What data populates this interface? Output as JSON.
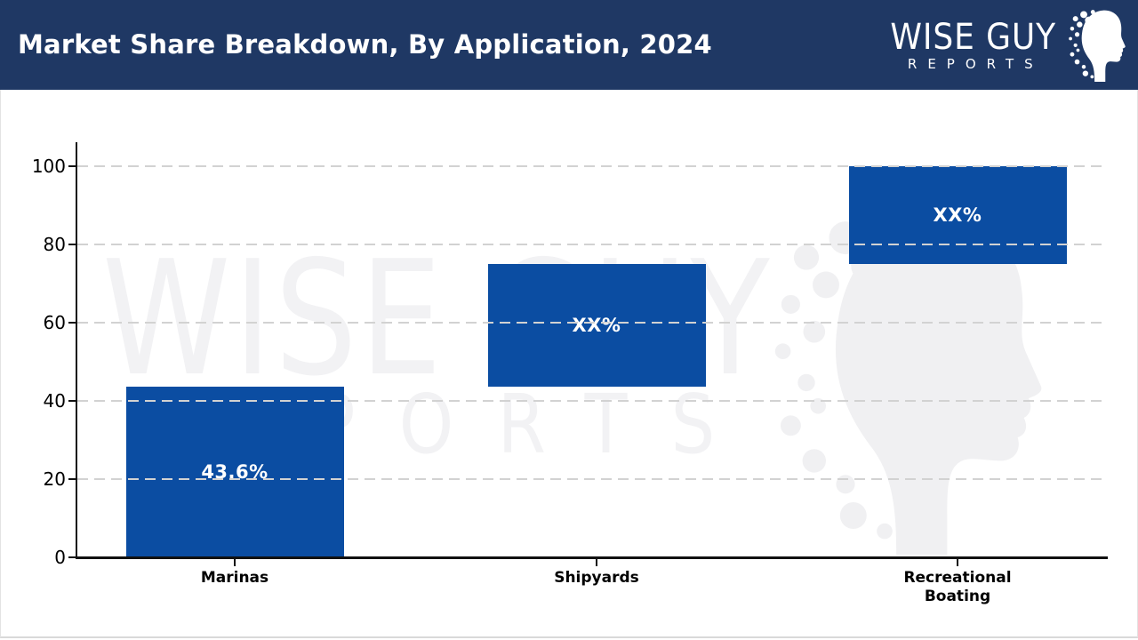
{
  "header": {
    "title": "Market Share Breakdown, By Application, 2024",
    "logo_line1": "WISE GUY",
    "logo_line2": "REPORTS"
  },
  "watermark": {
    "line1": "WISE GUY",
    "line2": "REPORTS"
  },
  "colors": {
    "header_bg": "#1f3864",
    "bar_fill": "#0b4da2",
    "grid_line": "#d2d2d2",
    "axis_line": "#111111",
    "bar_label_text": "#ffffff",
    "watermark_text": "#f2f2f4"
  },
  "chart_data": {
    "type": "bar",
    "variant": "stacked-waterfall-percentage",
    "title": "Market Share Breakdown, By Application, 2024",
    "categories": [
      "Marinas",
      "Shipyards",
      "Recreational Boating"
    ],
    "bars": [
      {
        "category": "Marinas",
        "start": 0,
        "end": 43.6,
        "value_label": "43.6%"
      },
      {
        "category": "Shipyards",
        "start": 43.6,
        "end": 75,
        "value_label": "XX%"
      },
      {
        "category": "Recreational Boating",
        "start": 75,
        "end": 100,
        "value_label": "XX%"
      }
    ],
    "yticks": [
      0,
      20,
      40,
      60,
      80,
      100
    ],
    "ylim": [
      0,
      106
    ],
    "xlabel": "",
    "ylabel": "",
    "grid": "horizontal-dashed-above-bars",
    "legend": "none"
  }
}
